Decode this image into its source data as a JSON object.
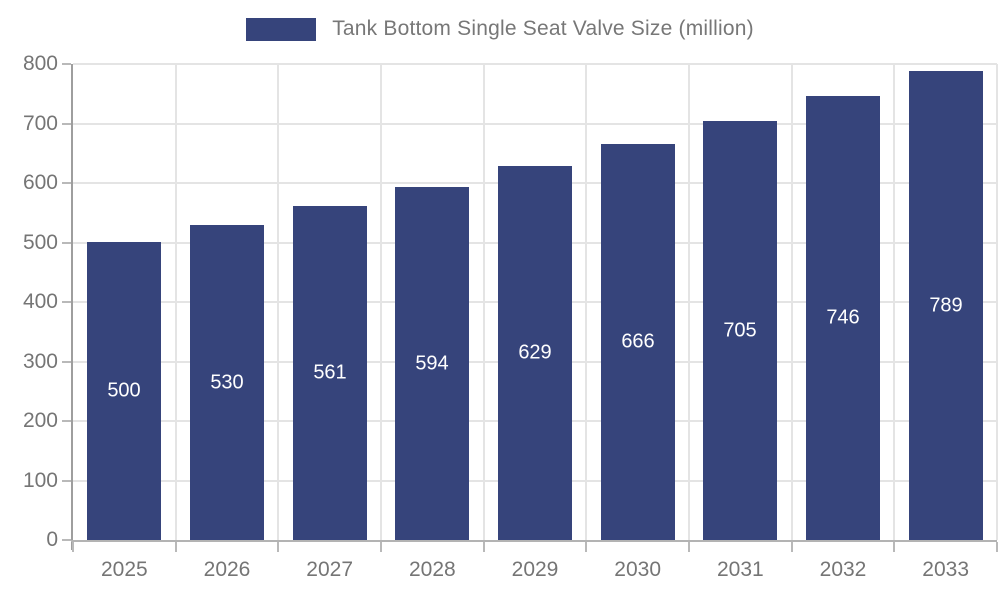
{
  "chart_data": {
    "type": "bar",
    "title": "Tank Bottom Single Seat Valve Size (million)",
    "categories": [
      "2025",
      "2026",
      "2027",
      "2028",
      "2029",
      "2030",
      "2031",
      "2032",
      "2033"
    ],
    "values": [
      500,
      530,
      561,
      594,
      629,
      666,
      705,
      746,
      789
    ],
    "xlabel": "",
    "ylabel": "",
    "ylim": [
      0,
      800
    ],
    "yticks": [
      0,
      100,
      200,
      300,
      400,
      500,
      600,
      700,
      800
    ],
    "grid": true,
    "legend_position": "top-center",
    "bar_label_position": "inside-center",
    "colors": {
      "bar": "#36447b",
      "bar_label": "#ffffff",
      "legend_text": "#777777",
      "axis_text": "#757575",
      "grid_line": "#e4e4e4",
      "axis_line": "#a8a8a8"
    }
  }
}
